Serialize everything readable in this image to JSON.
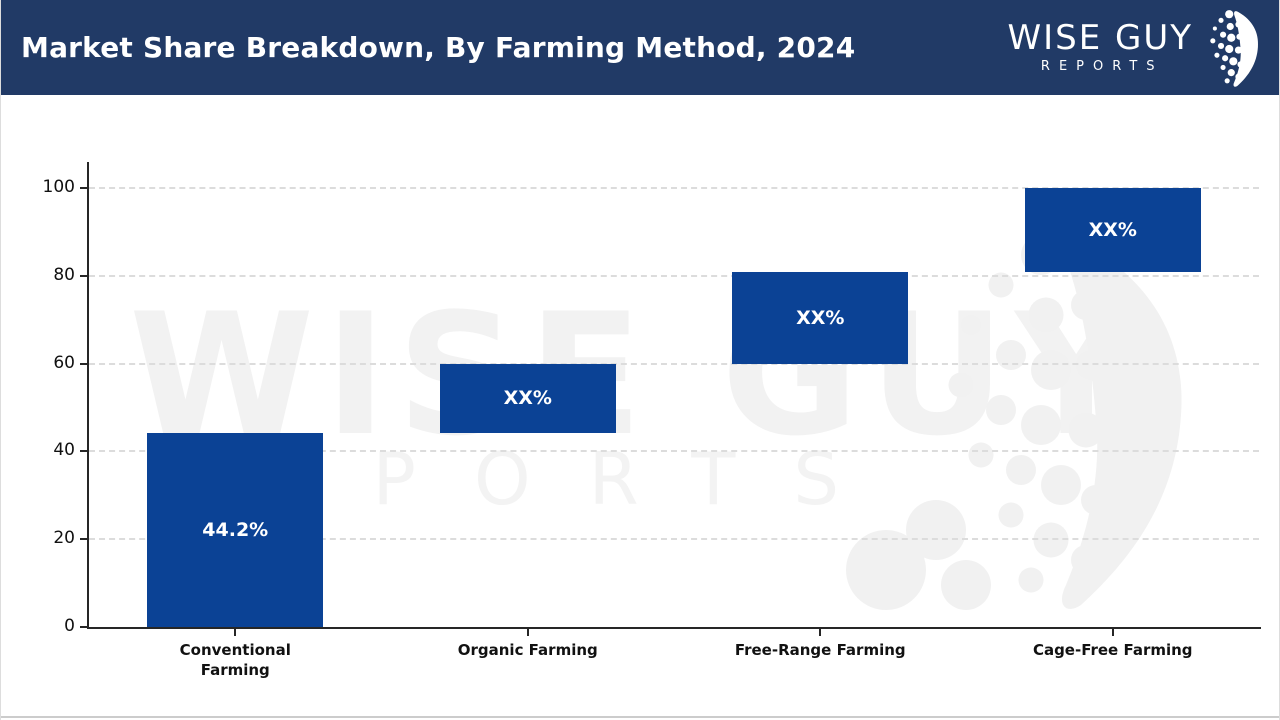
{
  "header": {
    "title": "Market Share Breakdown, By Farming Method, 2024",
    "bg_color": "#213A66",
    "logo": {
      "line1": "WISE GUY",
      "line2": "REPORTS"
    }
  },
  "watermark": {
    "line1": "WISE GUY",
    "line2": "REPORTS"
  },
  "chart_data": {
    "type": "bar",
    "subtype": "waterfall",
    "title": "Market Share Breakdown, By Farming Method, 2024",
    "categories": [
      "Conventional\nFarming",
      "Organic Farming",
      "Free-Range Farming",
      "Cage-Free Farming"
    ],
    "segments": [
      {
        "category": "Conventional Farming",
        "base": 0,
        "top": 44.2,
        "label": "44.2%"
      },
      {
        "category": "Organic Farming",
        "base": 44.2,
        "top": 60.0,
        "label": "XX%"
      },
      {
        "category": "Free-Range Farming",
        "base": 60.0,
        "top": 80.8,
        "label": "XX%"
      },
      {
        "category": "Cage-Free Farming",
        "base": 80.8,
        "top": 100.0,
        "label": "XX%"
      }
    ],
    "xlabel": "",
    "ylabel": "",
    "yticks": [
      0,
      20,
      40,
      60,
      80,
      100
    ],
    "ylim": [
      0,
      105.9
    ],
    "grid": "horizontal-dashed",
    "legend": "none",
    "bar_color": "#0B4295",
    "bar_label_color": "#ffffff",
    "axis_color": "#262626",
    "gridline_color": "#dcdcdc",
    "tick_label_color": "#111111",
    "background": "#ffffff"
  }
}
